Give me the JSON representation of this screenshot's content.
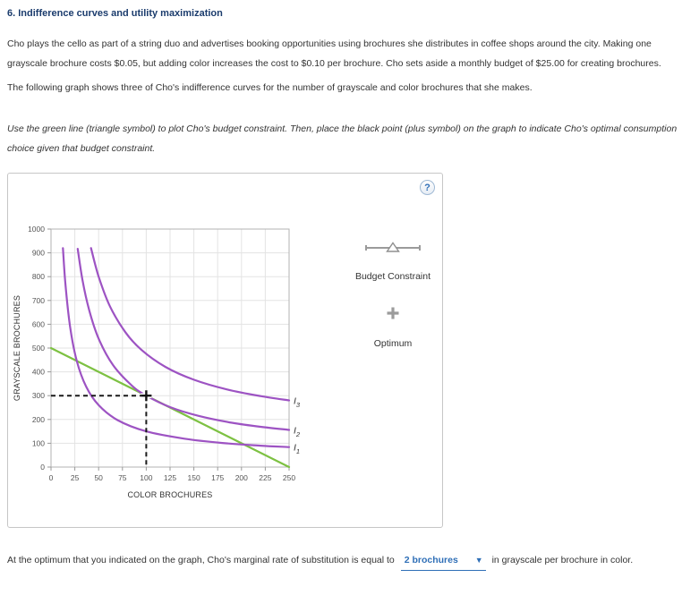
{
  "header": {
    "title": "6. Indifference curves and utility maximization"
  },
  "paragraphs": {
    "p1": "Cho plays the cello as part of a string duo and advertises booking opportunities using brochures she distributes in coffee shops around the city. Making one grayscale brochure costs $0.05, but adding color increases the cost to $0.10 per brochure. Cho sets aside a monthly budget of $25.00 for creating brochures.",
    "p2": "The following graph shows three of Cho's indifference curves for the number of grayscale and color brochures that she makes.",
    "instruction": "Use the green line (triangle symbol) to plot Cho's budget constraint. Then, place the black point (plus symbol) on the graph to indicate Cho's optimal consumption choice given that budget constraint."
  },
  "panel": {
    "help_label": "?",
    "legend": [
      {
        "id": "budget-constraint",
        "label": "Budget Constraint",
        "symbol": "triangle-line"
      },
      {
        "id": "optimum",
        "label": "Optimum",
        "symbol": "plus"
      }
    ]
  },
  "question": {
    "prefix": "At the optimum that you indicated on the graph, Cho's marginal rate of substitution is equal to",
    "answer": "2 brochures",
    "suffix": "in grayscale per brochure in color."
  },
  "colors": {
    "heading_blue": "#1b3c6d",
    "curve_purple": "#9d53c3",
    "budget_green": "#7dc142",
    "dashed_black": "#1a1a1a",
    "link_blue": "#2f6fb7"
  },
  "chart_data": {
    "type": "line",
    "title": "",
    "xlabel": "COLOR BROCHURES",
    "ylabel": "GRAYSCALE BROCHURES",
    "xlim": [
      0,
      250
    ],
    "ylim": [
      0,
      1000
    ],
    "x_tick_step": 25,
    "y_tick_step": 100,
    "grid": true,
    "series": [
      {
        "name": "budget-constraint-line",
        "color": "#7dc142",
        "straight": true,
        "points": [
          [
            0,
            500
          ],
          [
            250,
            0
          ]
        ]
      },
      {
        "name": "indifference-curve-1",
        "label": "I",
        "sub": "1",
        "color": "#9d53c3",
        "points": [
          [
            12.5,
            920
          ],
          [
            15,
            773
          ],
          [
            20,
            590
          ],
          [
            27,
            447
          ],
          [
            37,
            337
          ],
          [
            50,
            260
          ],
          [
            70,
            197
          ],
          [
            100,
            150
          ],
          [
            140,
            119
          ],
          [
            180,
            101
          ],
          [
            220,
            90
          ],
          [
            250,
            84
          ]
        ]
      },
      {
        "name": "indifference-curve-2",
        "label": "I",
        "sub": "2",
        "color": "#9d53c3",
        "points": [
          [
            28,
            917
          ],
          [
            33,
            787
          ],
          [
            40,
            660
          ],
          [
            50,
            540
          ],
          [
            65,
            429
          ],
          [
            85,
            342
          ],
          [
            100,
            300
          ],
          [
            125,
            252
          ],
          [
            155,
            215
          ],
          [
            190,
            186
          ],
          [
            220,
            169
          ],
          [
            250,
            156
          ]
        ]
      },
      {
        "name": "indifference-curve-3",
        "label": "I",
        "sub": "3",
        "color": "#9d53c3",
        "points": [
          [
            42,
            920
          ],
          [
            50,
            800
          ],
          [
            62,
            674
          ],
          [
            78,
            567
          ],
          [
            95,
            492
          ],
          [
            120,
            421
          ],
          [
            150,
            367
          ],
          [
            185,
            326
          ],
          [
            220,
            298
          ],
          [
            250,
            280
          ]
        ]
      }
    ],
    "optimum": {
      "x": 100,
      "y": 300
    },
    "guides": [
      {
        "from": [
          0,
          300
        ],
        "to": [
          100,
          300
        ]
      },
      {
        "from": [
          100,
          300
        ],
        "to": [
          100,
          0
        ]
      }
    ]
  }
}
